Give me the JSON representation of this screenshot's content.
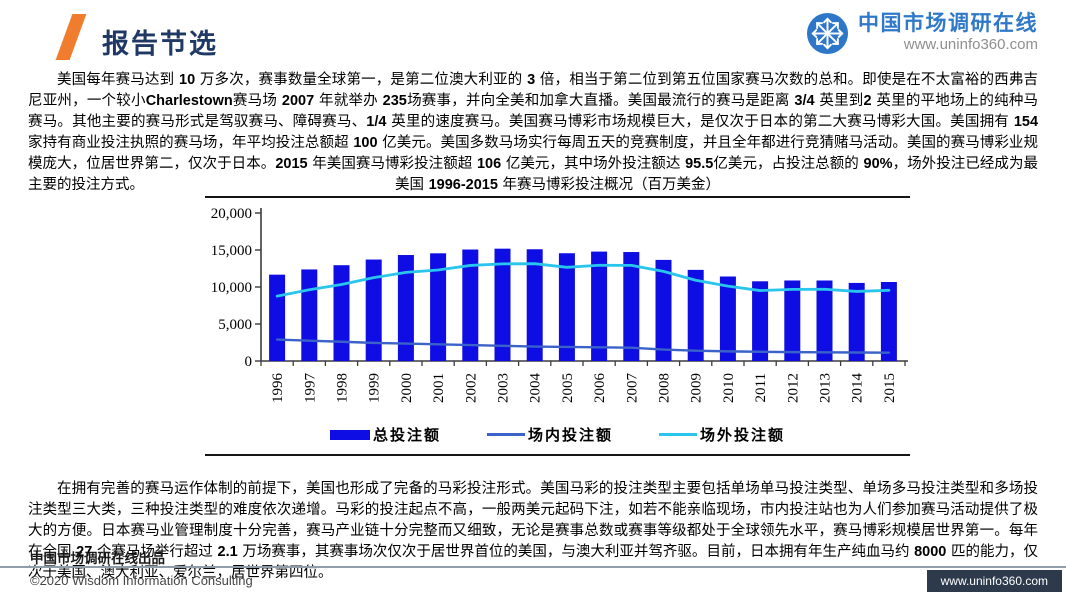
{
  "header": {
    "title": "报告节选",
    "logo": {
      "name": "中国市场调研在线",
      "url": "www.uninfo360.com"
    }
  },
  "paragraphs": {
    "p1": [
      {
        "t": "美国每年赛马达到 "
      },
      {
        "t": "10",
        "b": 1
      },
      {
        "t": " 万多次，赛事数量全球第一，是第二位澳大利亚的 "
      },
      {
        "t": "3",
        "b": 1
      },
      {
        "t": " 倍，相当于第二位到第五位国家赛马次数的总和。即使是在不太富裕的西弗吉尼亚州，一个较小"
      },
      {
        "t": "Charlestown",
        "b": 1
      },
      {
        "t": "赛马场 "
      },
      {
        "t": "2007",
        "b": 1
      },
      {
        "t": " 年就举办 "
      },
      {
        "t": "235",
        "b": 1
      },
      {
        "t": "场赛事，并向全美和加拿大直播。美国最流行的赛马是距离 "
      },
      {
        "t": "3/4",
        "b": 1
      },
      {
        "t": " 英里到"
      },
      {
        "t": "2",
        "b": 1
      },
      {
        "t": " 英里的平地场上的纯种马赛马。其他主要的赛马形式是驾驭赛马、障碍赛马、"
      },
      {
        "t": "1/4",
        "b": 1
      },
      {
        "t": " 英里的速度赛马。美国赛马博彩市场规模巨大，是仅次于日本的第二大赛马博彩大国。美国拥有 "
      },
      {
        "t": "154",
        "b": 1
      },
      {
        "t": " 家持有商业投注执照的赛马场，年平均投注总额超 "
      },
      {
        "t": "100",
        "b": 1
      },
      {
        "t": " 亿美元。美国多数马场实行每周五天的竞赛制度，并且全年都进行竞猜赌马活动。美国的赛马博彩业规模庞大，位居世界第二，仅次于日本。"
      },
      {
        "t": "2015",
        "b": 1
      },
      {
        "t": " 年美国赛马博彩投注额超 "
      },
      {
        "t": "106",
        "b": 1
      },
      {
        "t": " 亿美元，其中场外投注额达 "
      },
      {
        "t": "95.5",
        "b": 1
      },
      {
        "t": "亿美元，占投注总额的 "
      },
      {
        "t": "90%",
        "b": 1
      },
      {
        "t": "，场外投注已经成为最主要的投注方式。"
      }
    ],
    "p2": [
      {
        "t": "在拥有完善的赛马运作体制的前提下，美国也形成了完备的马彩投注形式。美国马彩的投注类型主要包括单场单马投注类型、单场多马投注类型和多场投注类型三大类，三种投注类型的难度依次递增。马彩的投注起点不高，一般两美元起码下注，如若不能亲临现场，市内投注站也为人们参加赛马活动提供了极大的方便。日本赛马业管理制度十分完善，赛马产业链十分完整而又细致，无论是赛事总数或赛事等级都处于全球领先水平，赛马博彩规模居世界第一。每年在全国 "
      },
      {
        "t": "27",
        "b": 1
      },
      {
        "t": " 个赛马场举行超过 "
      },
      {
        "t": "2.1",
        "b": 1
      },
      {
        "t": " 万场赛事，其赛事场次仅次于居世界首位的美国，与澳大利亚并驾齐驱。目前，日本拥有年生产纯血马约 "
      },
      {
        "t": "8000",
        "b": 1
      },
      {
        "t": " 匹的能力，仅次于美国、澳大利亚、爱尔兰，居世界第四位。"
      }
    ]
  },
  "chart_data": {
    "type": "bar",
    "title": "美国 1996-2015 年赛马博彩投注概况（百万美金）",
    "title_segments": [
      {
        "t": "美国 "
      },
      {
        "t": "1996-2015",
        "b": 1
      },
      {
        "t": " 年赛马博彩投注概况（百万美金）"
      }
    ],
    "categories": [
      "1996",
      "1997",
      "1998",
      "1999",
      "2000",
      "2001",
      "2002",
      "2003",
      "2004",
      "2005",
      "2006",
      "2007",
      "2008",
      "2009",
      "2010",
      "2011",
      "2012",
      "2013",
      "2014",
      "2015"
    ],
    "series": [
      {
        "name": "总投注额",
        "kind": "bar",
        "color": "#0d0de4",
        "values": [
          11667,
          12371,
          12943,
          13710,
          14321,
          14551,
          15065,
          15180,
          15100,
          14561,
          14785,
          14725,
          13662,
          12315,
          11419,
          10770,
          10880,
          10877,
          10550,
          10675
        ]
      },
      {
        "name": "场内投注额",
        "kind": "line",
        "color": "#3a62c8",
        "values": [
          2900,
          2750,
          2600,
          2450,
          2350,
          2250,
          2150,
          2050,
          1950,
          1900,
          1850,
          1800,
          1550,
          1400,
          1300,
          1250,
          1200,
          1180,
          1150,
          1125
        ]
      },
      {
        "name": "场外投注额",
        "kind": "line",
        "color": "#29c5ec",
        "values": [
          8767,
          9621,
          10343,
          11260,
          11971,
          12301,
          12915,
          13130,
          13150,
          12661,
          12935,
          12925,
          12112,
          10915,
          10119,
          9520,
          9680,
          9697,
          9400,
          9550
        ]
      }
    ],
    "ylim": [
      0,
      20000
    ],
    "yticks": [
      {
        "value": 0,
        "label": "0"
      },
      {
        "value": 5000,
        "label": "5,000"
      },
      {
        "value": 10000,
        "label": "10,000"
      },
      {
        "value": 15000,
        "label": "15,000"
      },
      {
        "value": 20000,
        "label": "20,000"
      }
    ],
    "grid": false,
    "legend_position": "bottom"
  },
  "footer": {
    "brand": "中国市场调研在线出品",
    "copyright": "©2020 Wisdom Information Consulting",
    "site": "www.uninfo360.com"
  }
}
